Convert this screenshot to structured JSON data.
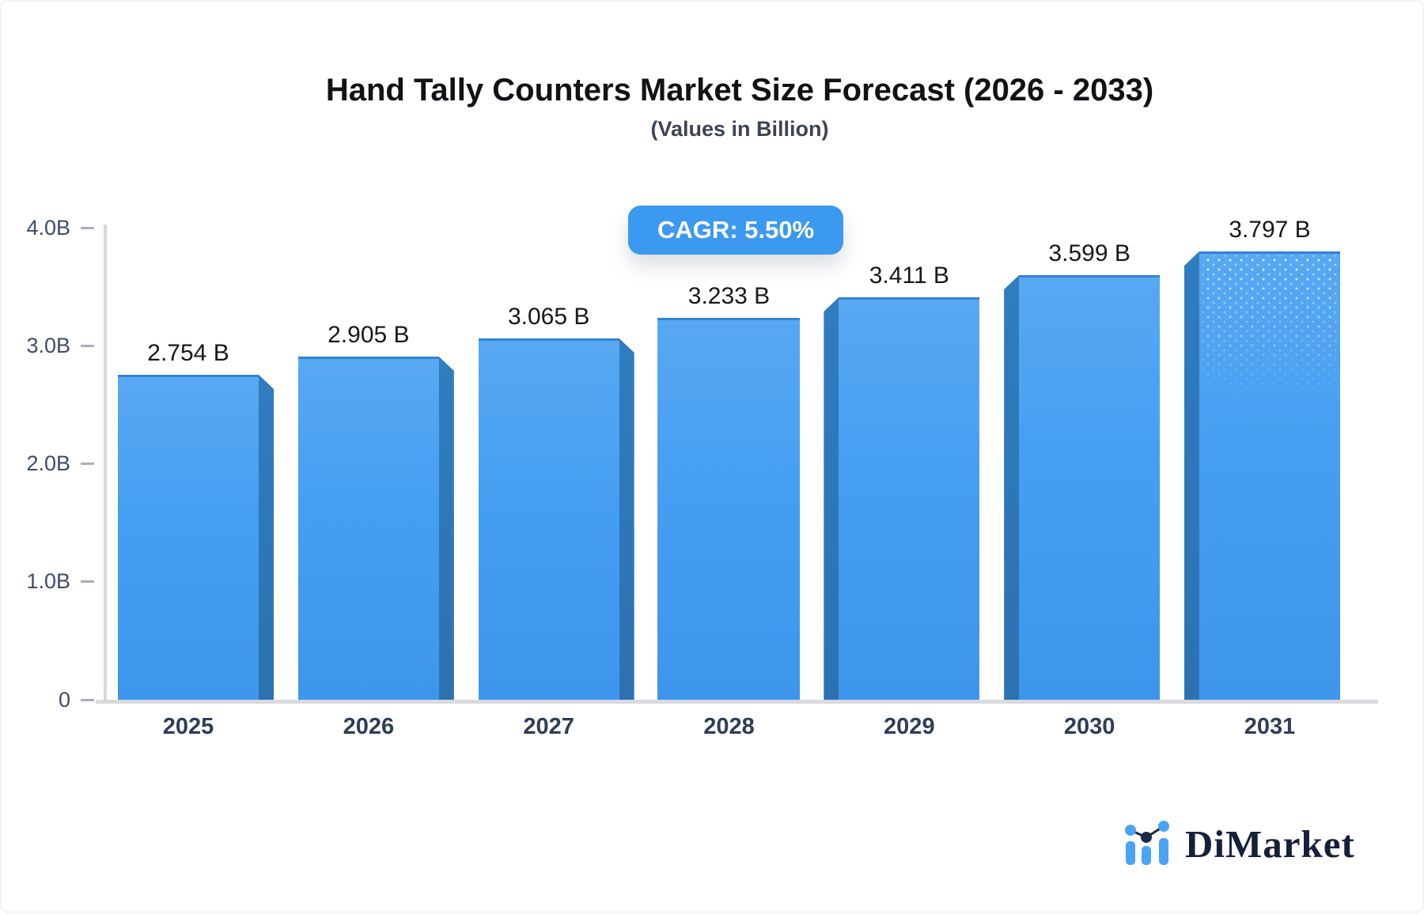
{
  "title": "Hand Tally Counters Market Size Forecast (2026 - 2033)",
  "subtitle": "(Values in Billion)",
  "cagr_badge": "CAGR: 5.50%",
  "brand": {
    "name": "DiMarket"
  },
  "colors": {
    "bar_face": "#459ef1",
    "bar_face_light": "#58a8f3",
    "bar_face_deep": "#3e96ec",
    "bar_side_top": "#2f7cbf",
    "bar_side_bottom": "#2d72b0",
    "badge_bg": "#3b99f0",
    "brand_blue": "#4aa3f7",
    "brand_navy": "#16203a",
    "axis_gray": "#d5d8de",
    "tick_gray": "#a9aeb9",
    "label_navy": "#2f3d58",
    "value_black": "#17181a"
  },
  "chart_data": {
    "type": "bar",
    "title": "Hand Tally Counters Market Size Forecast (2026 - 2033)",
    "subtitle": "(Values in Billion)",
    "unit": "Billion",
    "categories": [
      "2025",
      "2026",
      "2027",
      "2028",
      "2029",
      "2030",
      "2031"
    ],
    "values": [
      2.754,
      2.905,
      3.065,
      3.233,
      3.411,
      3.599,
      3.797
    ],
    "value_labels": [
      "2.754 B",
      "2.905 B",
      "3.065 B",
      "3.233 B",
      "3.411 B",
      "3.599 B",
      "3.797 B"
    ],
    "ylim": [
      0,
      4
    ],
    "yticks": [
      {
        "label": "4.0B",
        "value": 4
      },
      {
        "label": "3.0B",
        "value": 3
      },
      {
        "label": "2.0B",
        "value": 2
      },
      {
        "label": "1.0B",
        "value": 1
      },
      {
        "label": "0",
        "value": 0
      }
    ],
    "annotations": [
      "CAGR: 5.50%"
    ],
    "grid": false,
    "legend": false
  }
}
